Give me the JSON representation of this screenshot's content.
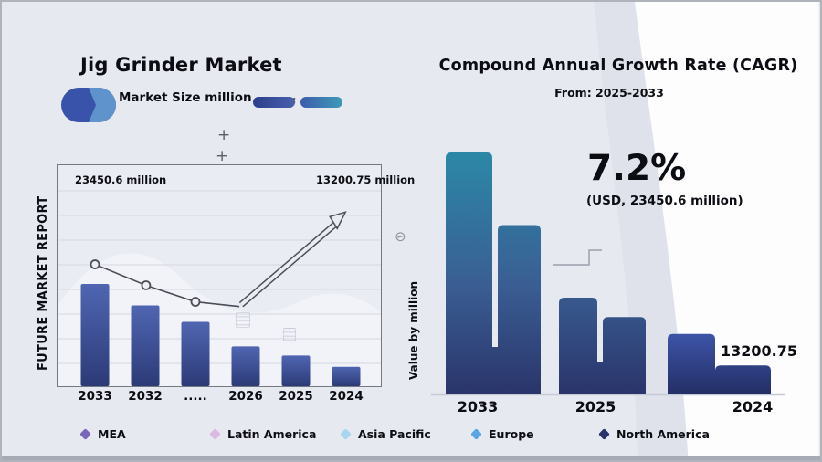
{
  "header": {
    "title": "Jig Grinder Market",
    "market_size_label": "Market Size million",
    "pill_separator": ":",
    "plus_marks": [
      "+",
      "+"
    ]
  },
  "left_chart": {
    "top_left_value": "23450.6 million",
    "top_right_value": "13200.75 million",
    "y_axis_left_label": "FUTURE MARKET REPORT",
    "y_axis_right_label": "Value by million",
    "minus_icon_glyph": "⊖"
  },
  "cagr_section": {
    "title": "Compound Annual Growth Rate (CAGR)",
    "subtitle": "From: 2025-2033",
    "value": "7.2%",
    "value_detail": "(USD, 23450.6 million)",
    "callout_value": "13200.75"
  },
  "legend": {
    "items": [
      {
        "label": "MEA",
        "color": "#7a67b8"
      },
      {
        "label": "Latin America",
        "color": "#dcb8e2"
      },
      {
        "label": "Asia Pacific",
        "color": "#a9d6ee"
      },
      {
        "label": "Europe",
        "color": "#56a7e3"
      },
      {
        "label": "North America",
        "color": "#28336a"
      }
    ]
  },
  "chart_data": [
    {
      "type": "bar",
      "title": "Jig Grinder Market - Market Size (million)",
      "ylabel": "Value by million",
      "grid": true,
      "categories": [
        "2033",
        "2032",
        ".....",
        "2026",
        "2025",
        "2024"
      ],
      "series": [
        {
          "name": "Market Size million",
          "values_relative_pct": [
            100,
            79,
            63,
            39,
            30,
            19
          ]
        }
      ],
      "labeled_values": {
        "2033": "23450.6 million",
        "2024": "13200.75 million"
      },
      "trend_line": {
        "points_frac": [
          [
            0.118,
            0.449
          ],
          [
            0.275,
            0.543
          ],
          [
            0.427,
            0.617
          ],
          [
            0.562,
            0.638
          ]
        ],
        "arrow_end_frac": [
          0.877,
          0.239
        ]
      }
    },
    {
      "type": "bar",
      "title": "Compound Annual Growth Rate (CAGR)",
      "subtitle": "From: 2025-2033",
      "cagr_pct": 7.2,
      "categories": [
        "2033",
        "2025",
        "2024"
      ],
      "series": [
        {
          "name": "bar-left",
          "values_relative_pct": [
            100,
            40,
            25
          ]
        },
        {
          "name": "bar-right",
          "values_relative_pct": [
            70,
            32,
            12
          ]
        }
      ],
      "labeled_values": {
        "2024": "13200.75"
      }
    }
  ],
  "colors": {
    "background_left": "#e7e9f1",
    "background_right": "#fdfdfe",
    "left_bar_top": "#5066b2",
    "left_bar_bottom": "#2c3a76",
    "right_bar_teal_top": "#2b8aa8",
    "right_bar_navy_bottom": "#293369",
    "icon_blue": "#3a53aa",
    "icon_light_blue": "#5e93cb"
  }
}
